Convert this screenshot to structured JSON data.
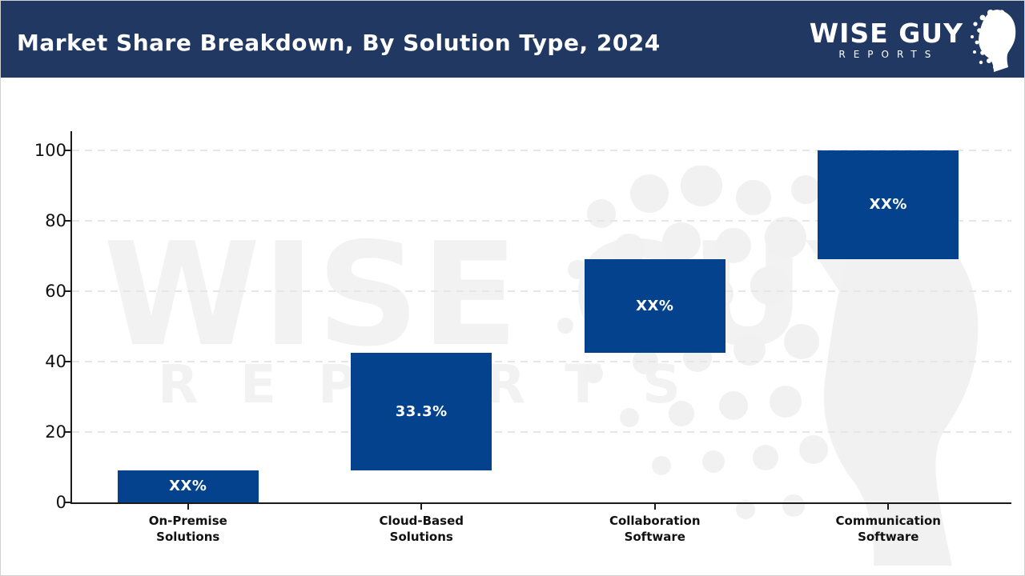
{
  "header": {
    "title": "Market Share Breakdown, By Solution Type, 2024",
    "logo": {
      "name": "WISE GUY",
      "tagline": "REPORTS"
    }
  },
  "watermark": {
    "name": "WISE GUY",
    "tagline": "REPORTS"
  },
  "chart_data": {
    "type": "bar",
    "variant": "floating-waterfall",
    "title": "Market Share Breakdown, By Solution Type, 2024",
    "categories": [
      "On-Premise Solutions",
      "Cloud-Based Solutions",
      "Collaboration Software",
      "Communication Software"
    ],
    "category_labels": [
      "On-Premise\nSolutions",
      "Cloud-Based\nSolutions",
      "Collaboration\nSoftware",
      "Communication\nSoftware"
    ],
    "bars": [
      {
        "category": "On-Premise Solutions",
        "start": 0,
        "end": 9.1,
        "label": "XX%"
      },
      {
        "category": "Cloud-Based Solutions",
        "start": 9.1,
        "end": 42.4,
        "label": "33.3%"
      },
      {
        "category": "Collaboration Software",
        "start": 42.4,
        "end": 69.1,
        "label": "XX%"
      },
      {
        "category": "Communication Software",
        "start": 69.1,
        "end": 100,
        "label": "XX%"
      }
    ],
    "ylim": [
      0,
      100
    ],
    "yticks": [
      0,
      20,
      40,
      60,
      80,
      100
    ],
    "grid": "horizontal-dashed",
    "legend": "none",
    "bar_color": "#04428e",
    "bar_label_color": "#ffffff"
  },
  "colors": {
    "header_bg": "#203862",
    "bar": "#04428e",
    "axis": "#1a1a1a",
    "grid": "#e6e6e6",
    "watermark": "#f2f2f2",
    "frame_border": "#d2d2d2"
  }
}
